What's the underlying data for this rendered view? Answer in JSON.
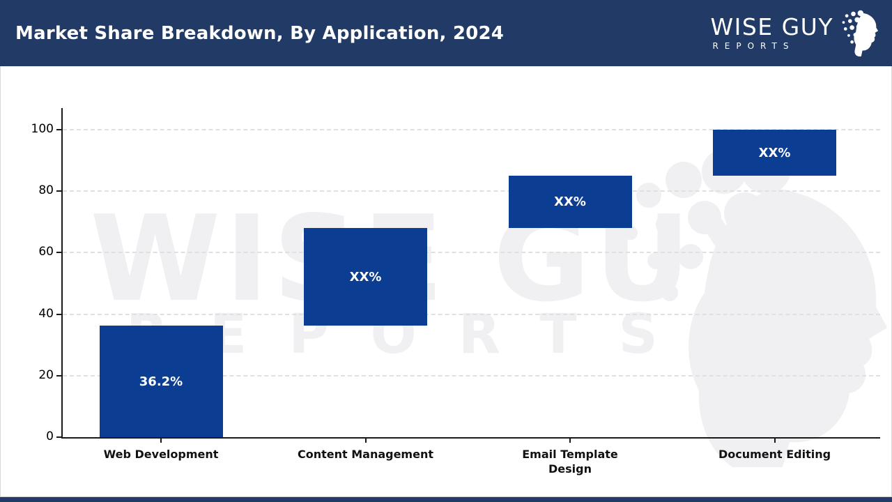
{
  "header": {
    "title": "Market Share Breakdown, By Application, 2024",
    "logo_primary": "WISE GUY",
    "logo_secondary": "REPORTS"
  },
  "watermark": {
    "primary": "WISE GUY",
    "secondary": "REPORTS"
  },
  "colors": {
    "header_bg": "#213a66",
    "bar": "#0b3e92",
    "grid": "#e0e0e0",
    "axis": "#1a1a1a",
    "watermark": "#f0f0f3",
    "value_label": "#ffffff"
  },
  "chart_data": {
    "type": "bar",
    "subtype": "floating-segment-share",
    "title": "Market Share Breakdown, By Application, 2024",
    "categories": [
      "Web Development",
      "Content Management",
      "Email Template\nDesign",
      "Document Editing"
    ],
    "bars": [
      {
        "category": "Web Development",
        "start": 0,
        "end": 36.2,
        "label": "36.2%"
      },
      {
        "category": "Content Management",
        "start": 36.2,
        "end": 68,
        "label": "XX%"
      },
      {
        "category": "Email Template Design",
        "start": 68,
        "end": 85,
        "label": "XX%"
      },
      {
        "category": "Document Editing",
        "start": 85,
        "end": 100,
        "label": "XX%"
      }
    ],
    "xlabel": "",
    "ylabel": "",
    "yticks": [
      0,
      20,
      40,
      60,
      80,
      100
    ],
    "ylim": [
      0,
      107
    ],
    "grid": "horizontal-dashed",
    "legend": "none",
    "bar_color": "#0b3e92",
    "value_label_color": "#ffffff"
  }
}
